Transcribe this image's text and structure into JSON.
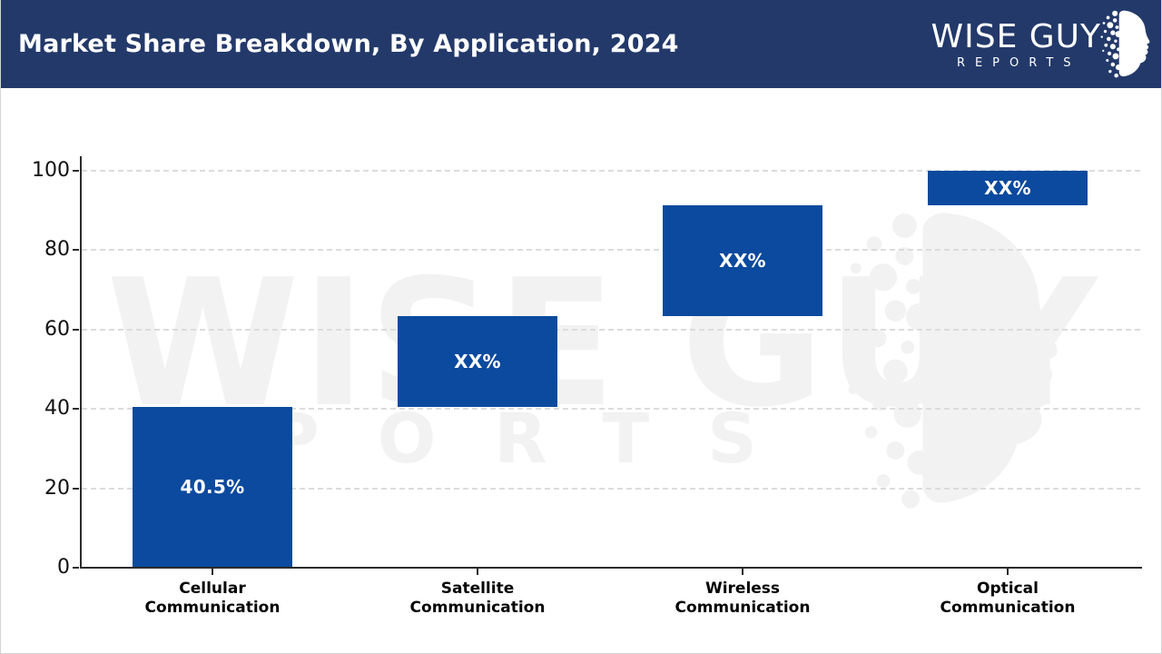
{
  "header": {
    "title": "Market Share Breakdown, By Application, 2024",
    "logo": {
      "line1": "WISE GUY",
      "line2": "REPORTS"
    }
  },
  "watermark": {
    "line1": "WISE GUY",
    "line2": "PORTS"
  },
  "colors": {
    "header_bg": "#23396a",
    "bar": "#0b4a9e",
    "grid": "#dcdcdc",
    "axis": "#2b2b2b",
    "value_label": "#ffffff",
    "watermark": "#f2f2f2"
  },
  "chart_data": {
    "type": "bar",
    "variant": "waterfall",
    "title": "Market Share Breakdown, By Application, 2024",
    "unit": "%",
    "ylim": [
      0,
      100
    ],
    "yticks": [
      0,
      20,
      40,
      60,
      80,
      100
    ],
    "grid": {
      "horizontal": true,
      "style": "dashed"
    },
    "legend": "none",
    "categories": [
      "Cellular Communication",
      "Satellite Communication",
      "Wireless Communication",
      "Optical Communication"
    ],
    "category_label_lines": [
      [
        "Cellular",
        "Communication"
      ],
      [
        "Satellite",
        "Communication"
      ],
      [
        "Wireless",
        "Communication"
      ],
      [
        "Optical",
        "Communication"
      ]
    ],
    "segments": [
      {
        "category": "Cellular Communication",
        "from": 0,
        "to": 40.5,
        "value_label": "40.5%"
      },
      {
        "category": "Satellite Communication",
        "from": 40.5,
        "to": 63.3,
        "value_label": "XX%"
      },
      {
        "category": "Wireless Communication",
        "from": 63.3,
        "to": 91.4,
        "value_label": "XX%"
      },
      {
        "category": "Optical Communication",
        "from": 91.4,
        "to": 100,
        "value_label": "XX%"
      }
    ]
  }
}
